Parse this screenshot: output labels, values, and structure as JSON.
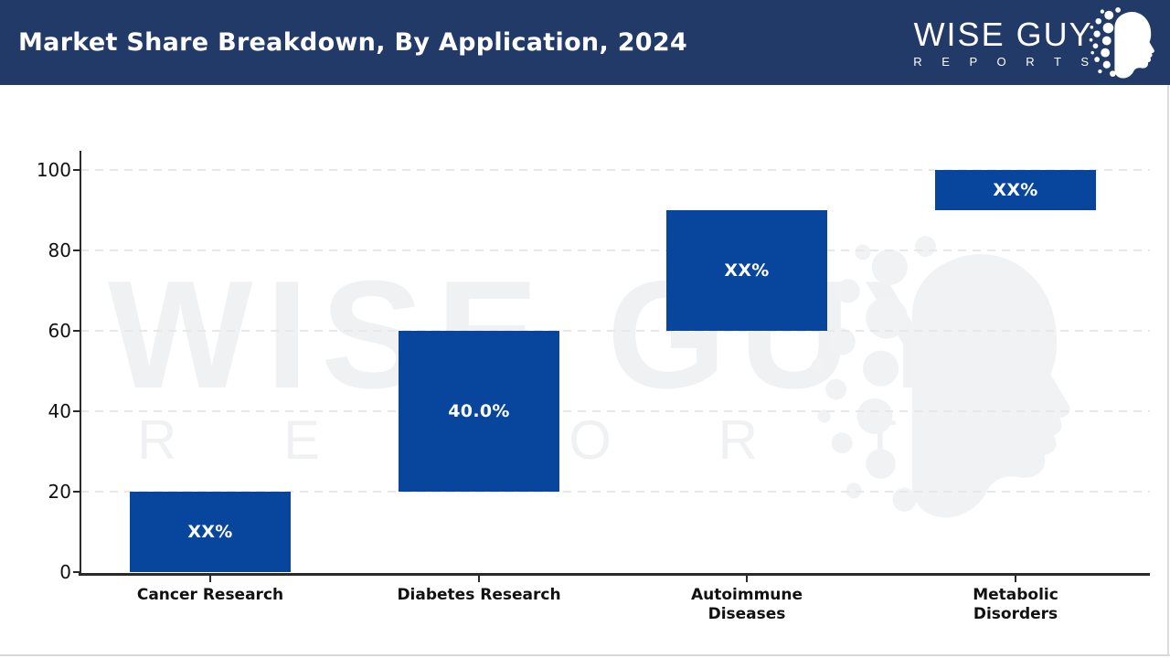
{
  "header": {
    "title": "Market Share Breakdown, By Application, 2024",
    "logo": {
      "line1": "WISE GUY",
      "line2": "REPORTS"
    }
  },
  "watermark": {
    "line1": "WISE GUY",
    "line2": "REPORTS"
  },
  "colors": {
    "header_bg": "#213A68",
    "bar_blue": "#08459C",
    "grid_gray": "#e8e8e8",
    "watermark_gray": "#f0f1f3",
    "axis_dark": "#2a2a2a"
  },
  "chart_data": {
    "type": "bar",
    "subtype": "waterfall",
    "title": "Market Share Breakdown, By Application, 2024",
    "categories": [
      "Cancer Research",
      "Diabetes Research",
      "Autoimmune\nDiseases",
      "Metabolic\nDisorders"
    ],
    "bars": [
      {
        "category": "Cancer Research",
        "start": 0,
        "end": 20,
        "label": "XX%"
      },
      {
        "category": "Diabetes Research",
        "start": 20,
        "end": 60,
        "label": "40.0%"
      },
      {
        "category": "Autoimmune Diseases",
        "start": 60,
        "end": 90,
        "label": "XX%"
      },
      {
        "category": "Metabolic Disorders",
        "start": 90,
        "end": 100,
        "label": "XX%"
      }
    ],
    "xlabel": "",
    "ylabel": "",
    "yticks": [
      0,
      20,
      40,
      60,
      80,
      100
    ],
    "ylim": [
      0,
      100
    ],
    "grid": "horizontal-dashed",
    "legend": "none",
    "bar_color": "#08459C",
    "bar_label_color": "#ffffff"
  }
}
